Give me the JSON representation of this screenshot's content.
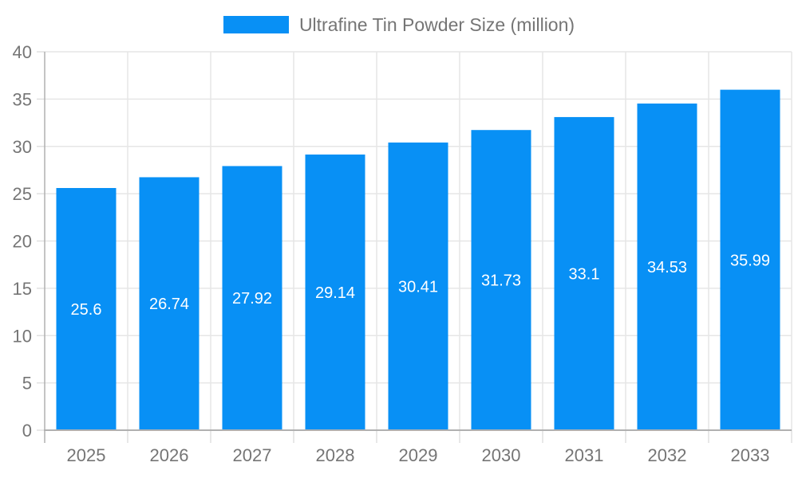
{
  "legend": {
    "label": "Ultrafine Tin Powder Size (million)"
  },
  "chart_data": {
    "type": "bar",
    "title": "Ultrafine Tin Powder Size (million)",
    "categories": [
      "2025",
      "2026",
      "2027",
      "2028",
      "2029",
      "2030",
      "2031",
      "2032",
      "2033"
    ],
    "values": [
      25.6,
      26.74,
      27.92,
      29.14,
      30.41,
      31.73,
      33.1,
      34.53,
      35.99
    ],
    "value_labels": [
      "25.6",
      "26.74",
      "27.92",
      "29.14",
      "30.41",
      "31.73",
      "33.1",
      "34.53",
      "35.99"
    ],
    "xlabel": "",
    "ylabel": "",
    "ylim": [
      0,
      40
    ],
    "yticks": [
      0,
      5,
      10,
      15,
      20,
      25,
      30,
      35,
      40
    ],
    "grid": true,
    "legend_position": "top",
    "value_label_position": "inside-center",
    "colors": {
      "bar": "#0890f5",
      "bar_label": "#ffffff",
      "axis_text": "#757575",
      "grid_line": "#e6e6e6",
      "tick_line": "#e0e0e0",
      "axis_line": "#b0b0b0"
    }
  }
}
